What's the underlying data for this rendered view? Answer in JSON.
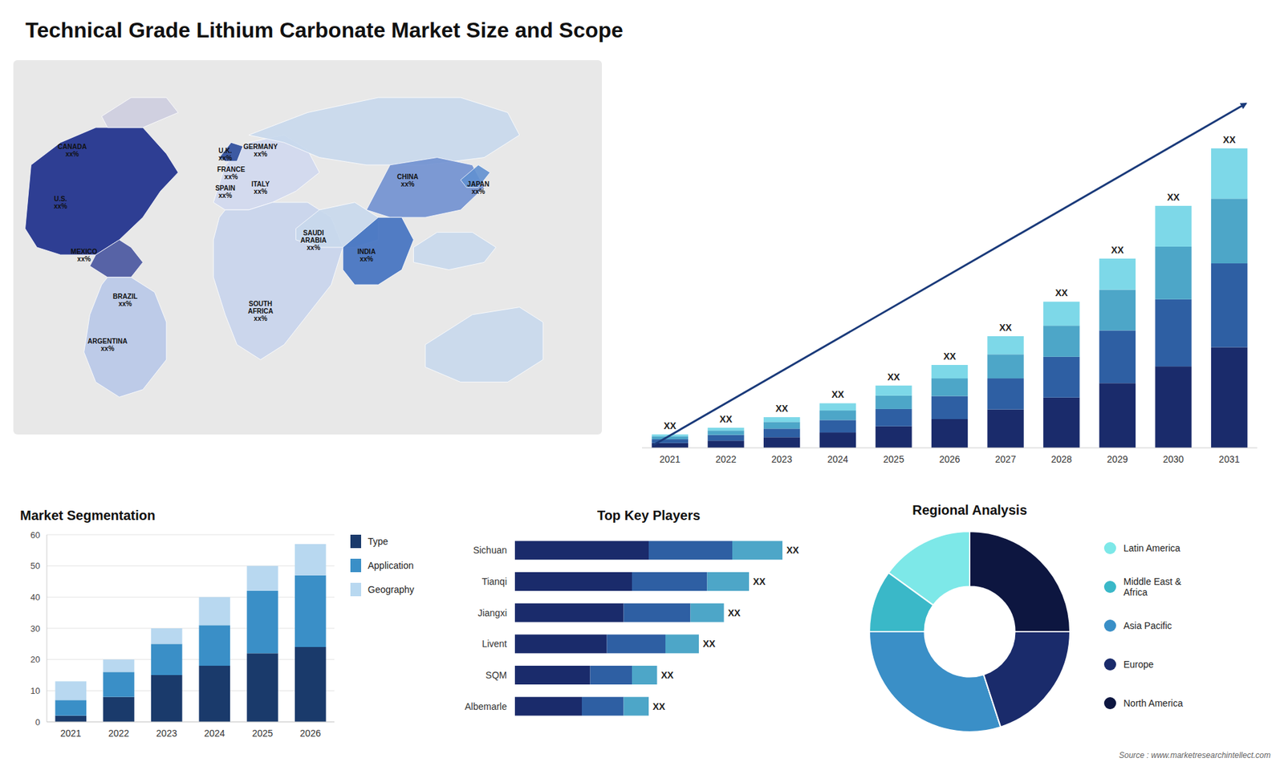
{
  "chart_data": [
    {
      "type": "map",
      "title": "Technical Grade Lithium Carbonate Market Size and Scope",
      "annotations": [
        "CANADA\nxx%",
        "U.S.\nxx%",
        "MEXICO\nxx%",
        "BRAZIL\nxx%",
        "ARGENTINA\nxx%",
        "U.K.\nxx%",
        "FRANCE\nxx%",
        "SPAIN\nxx%",
        "GERMANY\nxx%",
        "ITALY\nxx%",
        "SAUDI\nARABIA\nxx%",
        "SOUTH\nAFRICA\nxx%",
        "CHINA\nxx%",
        "INDIA\nxx%",
        "JAPAN\nxx%"
      ]
    },
    {
      "type": "bar",
      "stacked": true,
      "categories": [
        "2021",
        "2022",
        "2023",
        "2024",
        "2025",
        "2026",
        "2027",
        "2028",
        "2029",
        "2030",
        "2031"
      ],
      "series": [
        {
          "color": "#1a2b6b",
          "values": [
            1,
            1.5,
            2.2,
            3.2,
            4.5,
            6.0,
            8.0,
            10.5,
            13.5,
            17.0,
            21.0
          ]
        },
        {
          "color": "#2e5fa3",
          "values": [
            0.8,
            1.2,
            1.8,
            2.6,
            3.6,
            4.8,
            6.5,
            8.5,
            11.0,
            14.0,
            17.5
          ]
        },
        {
          "color": "#4da6c8",
          "values": [
            0.6,
            0.9,
            1.4,
            2.0,
            2.8,
            3.7,
            5.0,
            6.5,
            8.5,
            11.0,
            13.5
          ]
        },
        {
          "color": "#7dd8e8",
          "values": [
            0.4,
            0.6,
            1.0,
            1.5,
            2.1,
            2.8,
            3.8,
            5.0,
            6.5,
            8.5,
            10.5
          ]
        }
      ],
      "annotations": [
        "XX",
        "XX",
        "XX",
        "XX",
        "XX",
        "XX",
        "XX",
        "XX",
        "XX",
        "XX",
        "XX"
      ],
      "ylim": [
        0,
        78.125
      ],
      "tick_labels": "x"
    },
    {
      "type": "bar",
      "title": "Market Segmentation",
      "stacked": true,
      "categories": [
        "2021",
        "2022",
        "2023",
        "2024",
        "2025",
        "2026"
      ],
      "series": [
        {
          "name": "Type",
          "color": "#1a3a6b",
          "values": [
            2,
            8,
            15,
            18,
            22,
            24
          ]
        },
        {
          "name": "Application",
          "color": "#3a8fc7",
          "values": [
            5,
            8,
            10,
            13,
            20,
            23
          ]
        },
        {
          "name": "Geography",
          "color": "#b8d8f0",
          "values": [
            6,
            4,
            5,
            9,
            8,
            10
          ]
        }
      ],
      "ylim": [
        0,
        60
      ],
      "yticks": [
        0,
        10,
        20,
        30,
        40,
        50,
        60
      ],
      "grid": true,
      "legend": "right"
    },
    {
      "type": "bar",
      "title": "Top Key Players",
      "orientation": "horizontal",
      "stacked": true,
      "categories": [
        "Sichuan",
        "Tianqi",
        "Jiangxi",
        "Livent",
        "SQM",
        "Albemarle"
      ],
      "series": [
        {
          "color": "#1a2b6b",
          "values": [
            8,
            7,
            6.5,
            5.5,
            4.5,
            4
          ]
        },
        {
          "color": "#2e5fa3",
          "values": [
            5,
            4.5,
            4,
            3.5,
            2.5,
            2.5
          ]
        },
        {
          "color": "#4da6c8",
          "values": [
            3,
            2.5,
            2,
            2,
            1.5,
            1.5
          ]
        }
      ],
      "annotations": [
        "XX",
        "XX",
        "XX",
        "XX",
        "XX",
        "XX"
      ],
      "xlim": [
        0,
        19.2
      ],
      "tick_labels": "y"
    },
    {
      "type": "donut",
      "title": "Regional Analysis",
      "categories": [
        "Latin America",
        "Middle East &\nAfrica",
        "Asia Pacific",
        "Europe",
        "North America"
      ],
      "values": [
        15,
        10,
        30,
        20,
        25
      ],
      "colors": [
        "#7de8e8",
        "#3ab8c8",
        "#3a8fc7",
        "#1a2b6b",
        "#0d1640"
      ],
      "legend": "right",
      "annotations": [
        "Source : www.marketresearchintellect.com"
      ]
    }
  ]
}
